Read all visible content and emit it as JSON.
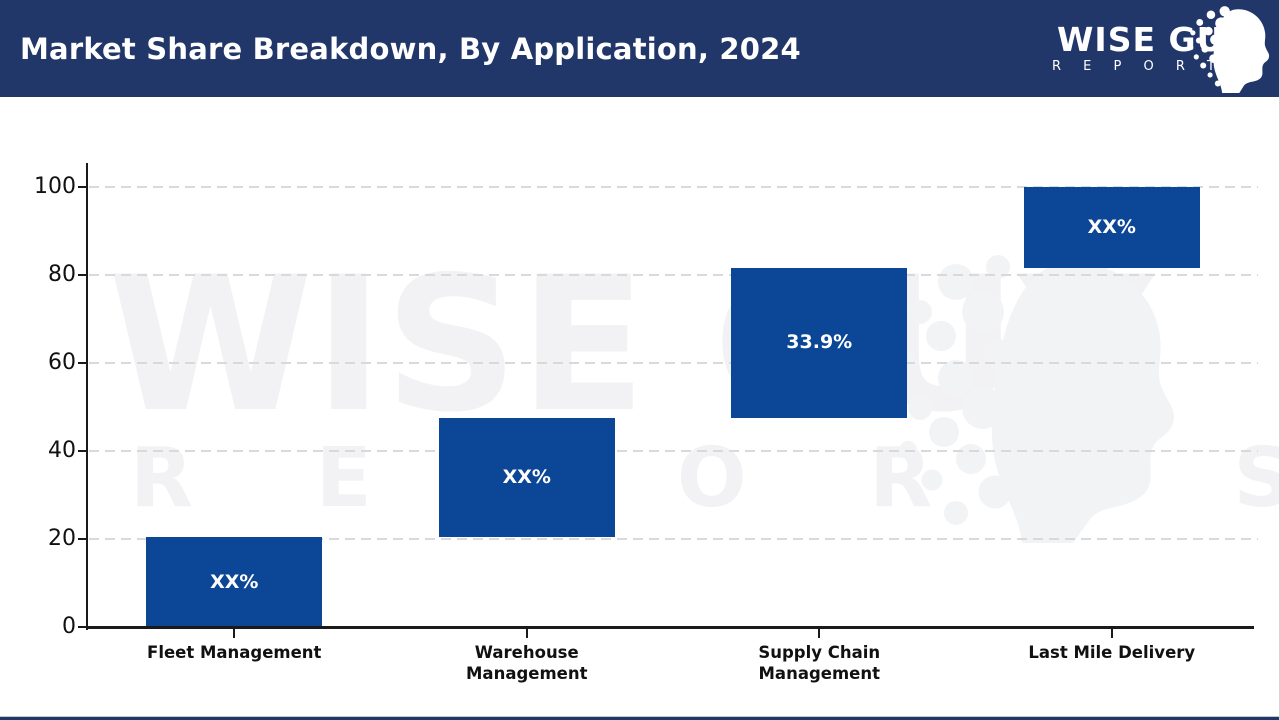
{
  "header": {
    "title": "Market Share Breakdown, By Application, 2024",
    "logo": {
      "wordmark": "WISE GUY",
      "subtext": "R E P O R T S"
    }
  },
  "watermark": {
    "line1": "WISE GUY",
    "line2": "R E P O R T S"
  },
  "chart_data": {
    "type": "bar",
    "subtype": "waterfall",
    "title": "Market Share Breakdown, By Application, 2024",
    "categories": [
      "Fleet Management",
      "Warehouse\nManagement",
      "Supply Chain\nManagement",
      "Last Mile Delivery"
    ],
    "segments": [
      {
        "category": "Fleet Management",
        "start": 0,
        "end": 20.5,
        "value": 20.5,
        "label": "XX%"
      },
      {
        "category": "Warehouse Management",
        "start": 20.5,
        "end": 47.6,
        "value": 27.1,
        "label": "XX%"
      },
      {
        "category": "Supply Chain Management",
        "start": 47.6,
        "end": 81.5,
        "value": 33.9,
        "label": "33.9%"
      },
      {
        "category": "Last Mile Delivery",
        "start": 81.5,
        "end": 100,
        "value": 18.5,
        "label": "XX%"
      }
    ],
    "yticks": [
      0,
      20,
      40,
      60,
      80,
      100
    ],
    "yticklabels": [
      "0",
      "20",
      "40",
      "60",
      "80",
      "100"
    ],
    "ylim": [
      0,
      100
    ],
    "xlabel": "",
    "ylabel": "",
    "grid": true,
    "legend": false,
    "bar_color": "#0c4696",
    "grid_color": "#d9d9d9",
    "header_color": "#213669",
    "watermark_color": "#f2f2f4"
  }
}
